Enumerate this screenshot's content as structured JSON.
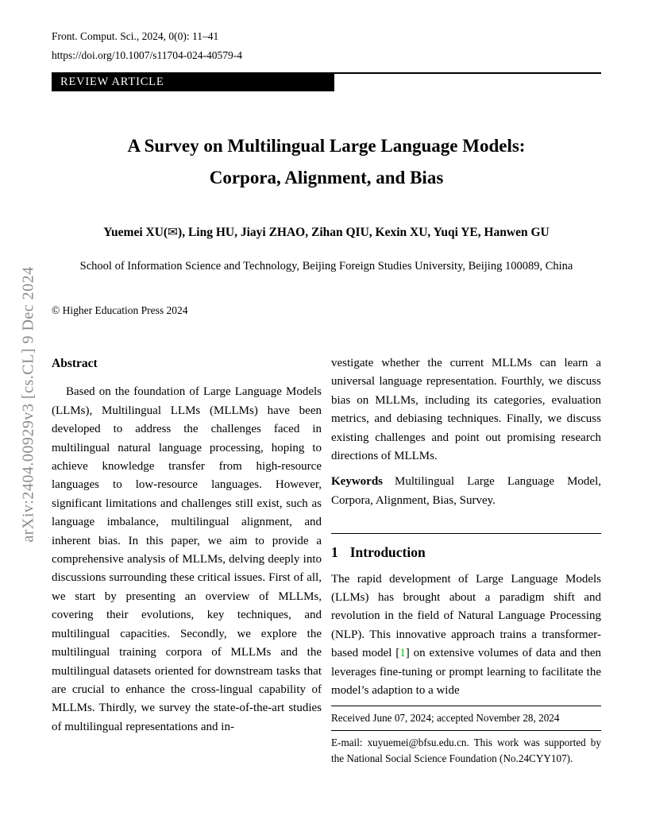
{
  "watermark": {
    "text": "arXiv:2404.00929v3  [cs.CL]  9 Dec 2024"
  },
  "header": {
    "journal_line": "Front. Comput. Sci., 2024, 0(0): 11–41",
    "doi_line": "https://doi.org/10.1007/s11704-024-40579-4",
    "banner_label": "REVIEW ARTICLE"
  },
  "title": {
    "line1": "A Survey on Multilingual Large Language Models:",
    "line2": "Corpora, Alignment, and Bias"
  },
  "authors": {
    "line": "Yuemei XU(✉), Ling HU, Jiayi ZHAO, Zihan QIU, Kexin XU, Yuqi YE, Hanwen GU"
  },
  "affiliation": {
    "line": "School of Information Science and Technology, Beijing Foreign Studies University, Beijing 100089, China"
  },
  "copyright_notice": "© Higher Education Press 2024",
  "abstract": {
    "heading": "Abstract",
    "column1_text": "Based on the foundation of Large Language Models (LLMs), Multilingual LLMs (MLLMs) have been developed to address the challenges faced in multilingual natural language processing, hoping to achieve knowledge transfer from high-resource languages to low-resource languages. However, significant limitations and challenges still exist, such as language imbalance, multilingual alignment, and inherent bias. In this paper, we aim to provide a comprehensive analysis of MLLMs, delving deeply into discussions surrounding these critical issues. First of all, we start by presenting an overview of MLLMs, covering their evolutions, key techniques, and multilingual capacities. Secondly, we explore the multilingual training corpora of MLLMs and the multilingual datasets oriented for downstream tasks that are crucial to enhance the cross-lingual capability of MLLMs. Thirdly, we survey the state-of-the-art studies of multilingual representations and in-",
    "column2_text": "vestigate whether the current MLLMs can learn a universal language representation. Fourthly, we discuss bias on MLLMs, including its categories, evaluation metrics, and debiasing techniques. Finally, we discuss existing challenges and point out promising research directions of MLLMs."
  },
  "keywords": {
    "label": "Keywords",
    "text": "Multilingual Large Language Model, Corpora, Alignment, Bias, Survey."
  },
  "section1": {
    "number": "1",
    "title": "Introduction",
    "para_part1": "The rapid development of Large Language Models (LLMs) has brought about a paradigm shift and revolution in the field of Natural Language Processing (NLP). This innovative approach trains a transformer-based model [",
    "citation_ref": "1",
    "para_part2": "] on extensive volumes of data and then leverages fine-tuning or prompt learning to facilitate the model’s adaption to a wide"
  },
  "footnotes": {
    "received_line": "Received June 07, 2024; accepted November 28, 2024",
    "email_line": "E-mail: xuyuemei@bfsu.edu.cn. This work was supported by the National Social Science Foundation (No.24CYY107)."
  },
  "colors": {
    "citation_link_green": "#00c000",
    "watermark_gray": "#8a8a8a",
    "banner_bg": "#000000",
    "banner_fg": "#ffffff"
  }
}
